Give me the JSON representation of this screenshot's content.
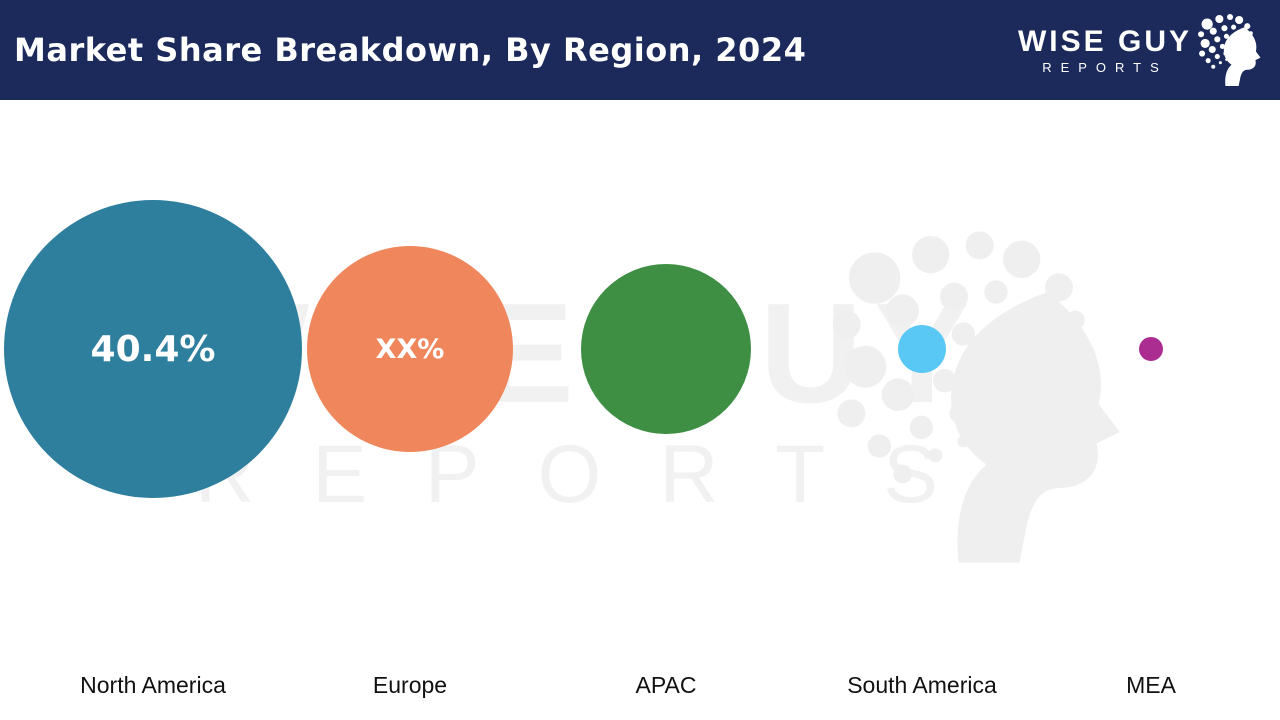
{
  "header": {
    "title": "Market Share Breakdown, By Region, 2024",
    "background": "#1b2a5a",
    "logo": {
      "line1": "WISE GUY",
      "line2": "REPORTS"
    }
  },
  "watermark": {
    "line1": "WISE GUY",
    "line2": "REPORTS"
  },
  "chart_data": {
    "type": "scatter",
    "subtype": "bubble",
    "title": "Market Share Breakdown, By Region, 2024",
    "legend_position": "none",
    "grid": false,
    "categories": [
      "North America",
      "Europe",
      "APAC",
      "South America",
      "MEA"
    ],
    "points": [
      {
        "label": "North America",
        "value_label": "40.4%",
        "value_pct": 40.4,
        "color": "#2e7e9e",
        "radius_px": 149
      },
      {
        "label": "Europe",
        "value_label": "XX%",
        "value_pct": null,
        "color": "#f0875c",
        "radius_px": 103
      },
      {
        "label": "APAC",
        "value_label": "",
        "value_pct": null,
        "color": "#3e8f44",
        "radius_px": 85
      },
      {
        "label": "South America",
        "value_label": "",
        "value_pct": null,
        "color": "#5ac8f4",
        "radius_px": 24
      },
      {
        "label": "MEA",
        "value_label": "",
        "value_pct": null,
        "color": "#ab2d91",
        "radius_px": 12
      }
    ]
  }
}
